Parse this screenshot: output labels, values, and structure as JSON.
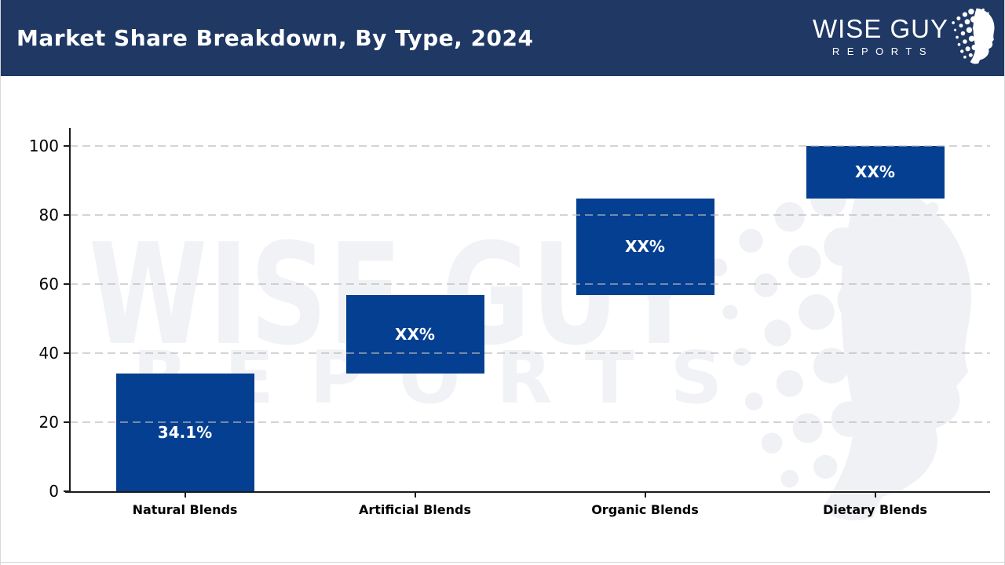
{
  "header": {
    "title": "Market Share Breakdown, By Type, 2024",
    "logo": {
      "line1": "WISE GUY",
      "line2": "REPORTS"
    }
  },
  "watermark": {
    "line1": "WISE GUY",
    "line2": "REPORTS"
  },
  "colors": {
    "header_bg": "#1f3864",
    "bar": "#043f91",
    "bar_label": "#ffffff",
    "gridline": "#d4d4d4",
    "watermark": "#f1f2f5"
  },
  "chart_data": {
    "type": "bar",
    "subtype": "waterfall",
    "title": "Market Share Breakdown, By Type, 2024",
    "categories": [
      "Natural Blends",
      "Artificial Blends",
      "Organic Blends",
      "Dietary Blends"
    ],
    "segments": [
      {
        "category": "Natural Blends",
        "start": 0,
        "end": 34.1,
        "label": "34.1%"
      },
      {
        "category": "Artificial Blends",
        "start": 34.1,
        "end": 56.9,
        "label": "XX%"
      },
      {
        "category": "Organic Blends",
        "start": 56.9,
        "end": 84.8,
        "label": "XX%"
      },
      {
        "category": "Dietary Blends",
        "start": 84.8,
        "end": 100,
        "label": "XX%"
      }
    ],
    "yticks": [
      0,
      20,
      40,
      60,
      80,
      100
    ],
    "ylim": [
      0,
      105
    ],
    "xlabel": "",
    "ylabel": "",
    "grid": "horizontal-dashed",
    "legend": "none"
  }
}
